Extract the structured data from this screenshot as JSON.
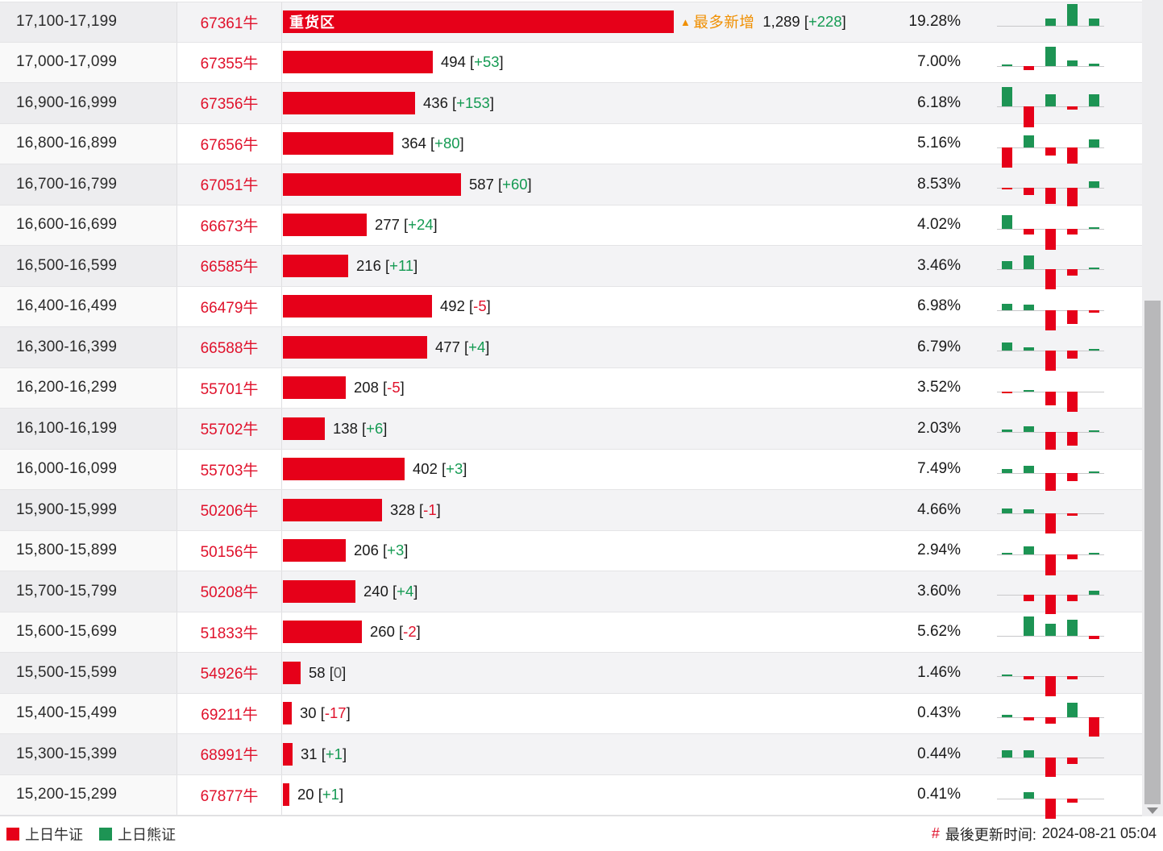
{
  "labels": {
    "heavy_zone": "重货区",
    "most_new": "最多新增",
    "triangle_up": "▲",
    "bull_legend": "上日牛证",
    "bear_legend": "上日熊证"
  },
  "footer": {
    "hash": "#",
    "updated_label": "最後更新时间:",
    "updated_value": "2024-08-21 05:04"
  },
  "colors": {
    "bar_red": "#e60019",
    "spark_green": "#1d9454",
    "text_red": "#e0112b",
    "text_green": "#149a52",
    "badge_orange": "#f08f00"
  },
  "rows": [
    {
      "range": "17,100-17,199",
      "code": "67361牛",
      "value": 1289,
      "value_display": "1,289",
      "delta": "+228",
      "pct": "19.28%",
      "heavy": true,
      "spark": [
        0,
        0,
        9,
        27,
        9
      ]
    },
    {
      "range": "17,000-17,099",
      "code": "67355牛",
      "value": 494,
      "value_display": "494",
      "delta": "+53",
      "pct": "7.00%",
      "heavy": false,
      "spark": [
        2,
        -5,
        24,
        7,
        3
      ]
    },
    {
      "range": "16,900-16,999",
      "code": "67356牛",
      "value": 436,
      "value_display": "436",
      "delta": "+153",
      "pct": "6.18%",
      "heavy": false,
      "spark": [
        24,
        -26,
        15,
        -4,
        15
      ]
    },
    {
      "range": "16,800-16,899",
      "code": "67656牛",
      "value": 364,
      "value_display": "364",
      "delta": "+80",
      "pct": "5.16%",
      "heavy": false,
      "spark": [
        -25,
        15,
        -10,
        -20,
        10
      ]
    },
    {
      "range": "16,700-16,799",
      "code": "67051牛",
      "value": 587,
      "value_display": "587",
      "delta": "+60",
      "pct": "8.53%",
      "heavy": false,
      "spark": [
        -2,
        -9,
        -20,
        -23,
        8
      ]
    },
    {
      "range": "16,600-16,699",
      "code": "66673牛",
      "value": 277,
      "value_display": "277",
      "delta": "+24",
      "pct": "4.02%",
      "heavy": false,
      "spark": [
        17,
        -7,
        -26,
        -7,
        2
      ]
    },
    {
      "range": "16,500-16,599",
      "code": "66585牛",
      "value": 216,
      "value_display": "216",
      "delta": "+11",
      "pct": "3.46%",
      "heavy": false,
      "spark": [
        10,
        17,
        -25,
        -8,
        2
      ]
    },
    {
      "range": "16,400-16,499",
      "code": "66479牛",
      "value": 492,
      "value_display": "492",
      "delta": "-5",
      "pct": "6.98%",
      "heavy": false,
      "spark": [
        8,
        7,
        -25,
        -17,
        -3
      ]
    },
    {
      "range": "16,300-16,399",
      "code": "66588牛",
      "value": 477,
      "value_display": "477",
      "delta": "+4",
      "pct": "6.79%",
      "heavy": false,
      "spark": [
        10,
        4,
        -25,
        -10,
        2
      ]
    },
    {
      "range": "16,200-16,299",
      "code": "55701牛",
      "value": 208,
      "value_display": "208",
      "delta": "-5",
      "pct": "3.52%",
      "heavy": false,
      "spark": [
        -2,
        2,
        -17,
        -25,
        0
      ]
    },
    {
      "range": "16,100-16,199",
      "code": "55702牛",
      "value": 138,
      "value_display": "138",
      "delta": "+6",
      "pct": "2.03%",
      "heavy": false,
      "spark": [
        3,
        7,
        -22,
        -17,
        2
      ]
    },
    {
      "range": "16,000-16,099",
      "code": "55703牛",
      "value": 402,
      "value_display": "402",
      "delta": "+3",
      "pct": "7.49%",
      "heavy": false,
      "spark": [
        5,
        9,
        -22,
        -10,
        2
      ]
    },
    {
      "range": "15,900-15,999",
      "code": "50206牛",
      "value": 328,
      "value_display": "328",
      "delta": "-1",
      "pct": "4.66%",
      "heavy": false,
      "spark": [
        6,
        5,
        -25,
        -3,
        0
      ]
    },
    {
      "range": "15,800-15,899",
      "code": "50156牛",
      "value": 206,
      "value_display": "206",
      "delta": "+3",
      "pct": "2.94%",
      "heavy": false,
      "spark": [
        2,
        10,
        -26,
        -6,
        2
      ]
    },
    {
      "range": "15,700-15,799",
      "code": "50208牛",
      "value": 240,
      "value_display": "240",
      "delta": "+4",
      "pct": "3.60%",
      "heavy": false,
      "spark": [
        0,
        -8,
        -24,
        -8,
        5
      ]
    },
    {
      "range": "15,600-15,699",
      "code": "51833牛",
      "value": 260,
      "value_display": "260",
      "delta": "-2",
      "pct": "5.62%",
      "heavy": false,
      "spark": [
        0,
        24,
        15,
        20,
        -4
      ]
    },
    {
      "range": "15,500-15,599",
      "code": "54926牛",
      "value": 58,
      "value_display": "58",
      "delta": "0",
      "pct": "1.46%",
      "heavy": false,
      "spark": [
        2,
        -4,
        -25,
        -4,
        0
      ]
    },
    {
      "range": "15,400-15,499",
      "code": "69211牛",
      "value": 30,
      "value_display": "30",
      "delta": "-17",
      "pct": "0.43%",
      "heavy": false,
      "spark": [
        3,
        -4,
        -8,
        18,
        -24
      ]
    },
    {
      "range": "15,300-15,399",
      "code": "68991牛",
      "value": 31,
      "value_display": "31",
      "delta": "+1",
      "pct": "0.44%",
      "heavy": false,
      "spark": [
        9,
        9,
        -24,
        -8,
        0
      ]
    },
    {
      "range": "15,200-15,299",
      "code": "67877牛",
      "value": 20,
      "value_display": "20",
      "delta": "+1",
      "pct": "0.41%",
      "heavy": false,
      "spark": [
        0,
        8,
        -25,
        -5,
        0
      ]
    }
  ]
}
